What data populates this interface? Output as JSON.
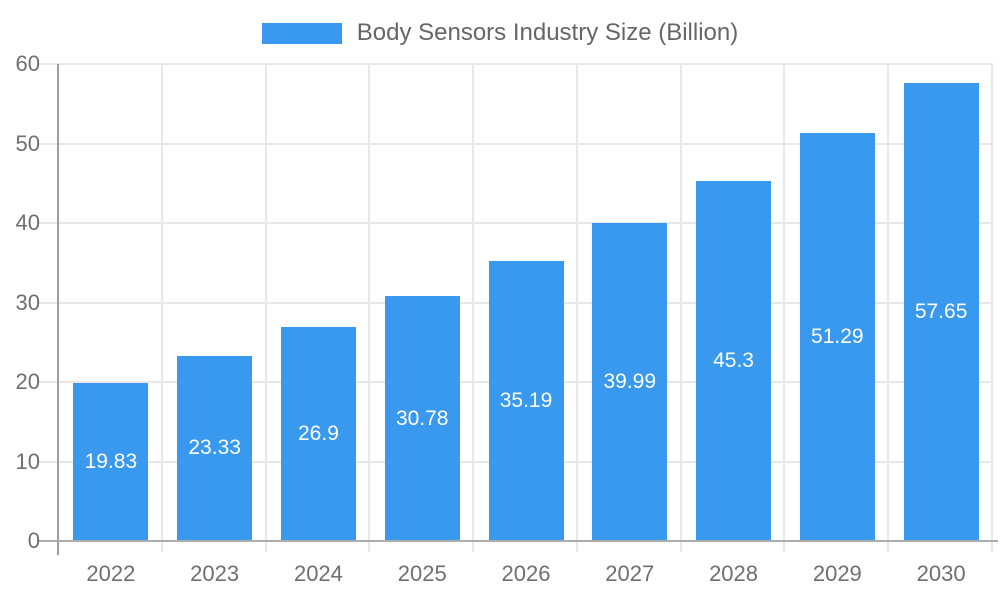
{
  "chart_data": {
    "type": "bar",
    "title": "",
    "legend": {
      "label": "Body Sensors Industry Size (Billion)",
      "position": "top"
    },
    "categories": [
      "2022",
      "2023",
      "2024",
      "2025",
      "2026",
      "2027",
      "2028",
      "2029",
      "2030"
    ],
    "series": [
      {
        "name": "Body Sensors Industry Size (Billion)",
        "values": [
          19.83,
          23.33,
          26.9,
          30.78,
          35.19,
          39.99,
          45.3,
          51.29,
          57.65
        ]
      }
    ],
    "value_labels": [
      "19.83",
      "23.33",
      "26.9",
      "30.78",
      "35.19",
      "39.99",
      "45.3",
      "51.29",
      "57.65"
    ],
    "xlabel": "",
    "ylabel": "",
    "ylim": [
      0,
      60
    ],
    "yticks": [
      0,
      10,
      20,
      30,
      40,
      50,
      60
    ],
    "grid": true,
    "value_labels_position": "center-inside-bar",
    "colors": {
      "bar": "#3999EE",
      "grid": "#E8E8E8",
      "axis_y": "#9E9E9E",
      "axis_x": "#ACACAC",
      "tick_label": "#6F6F6F",
      "legend_text": "#666666",
      "value_label": "#FFFFFF",
      "background": "#FFFFFF"
    }
  }
}
